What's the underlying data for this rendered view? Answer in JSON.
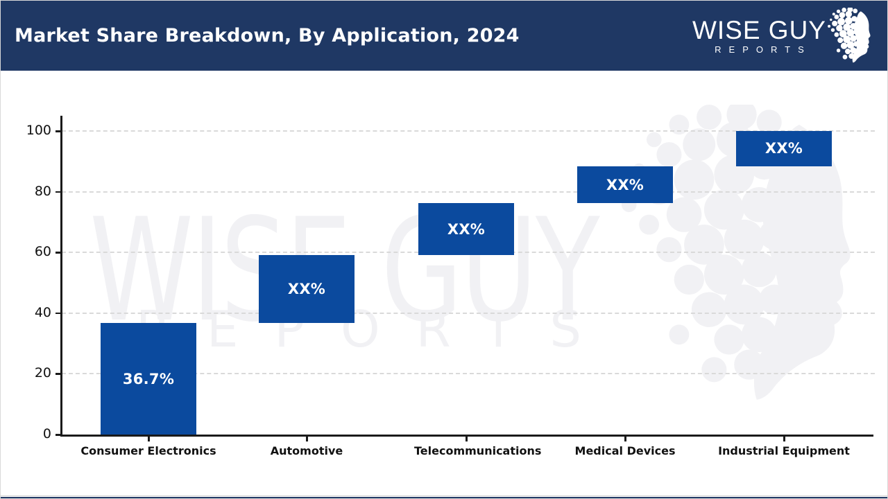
{
  "header": {
    "title": "Market Share Breakdown, By Application, 2024",
    "brand": {
      "line1": "WISE GUY",
      "line2": "REPORTS"
    }
  },
  "watermark": {
    "line1": "WISE GUY",
    "line2": "REPORTS"
  },
  "colors": {
    "header_bg": "#1f3864",
    "bar_fill": "#0b4a9e",
    "grid": "#d9d9d9",
    "axis": "#1a1a1a",
    "bar_label_text": "#ffffff",
    "watermark": "#f1f1f4"
  },
  "chart_data": {
    "type": "bar",
    "subtype": "waterfall",
    "title": "Market Share Breakdown, By Application, 2024",
    "categories": [
      "Consumer Electronics",
      "Automotive",
      "Telecommunications",
      "Medical Devices",
      "Industrial Equipment"
    ],
    "segments": [
      {
        "category": "Consumer Electronics",
        "start": 0,
        "end": 36.7,
        "label": "36.7%"
      },
      {
        "category": "Automotive",
        "start": 36.7,
        "end": 59.1,
        "label": "XX%"
      },
      {
        "category": "Telecommunications",
        "start": 59.1,
        "end": 76.2,
        "label": "XX%"
      },
      {
        "category": "Medical Devices",
        "start": 76.2,
        "end": 88.4,
        "label": "XX%"
      },
      {
        "category": "Industrial Equipment",
        "start": 88.4,
        "end": 100,
        "label": "XX%"
      }
    ],
    "xlabel": "",
    "ylabel": "",
    "ylim": [
      0,
      100
    ],
    "yticks": [
      0,
      20,
      40,
      60,
      80,
      100
    ],
    "grid": "horizontal dashed",
    "legend": "none"
  }
}
